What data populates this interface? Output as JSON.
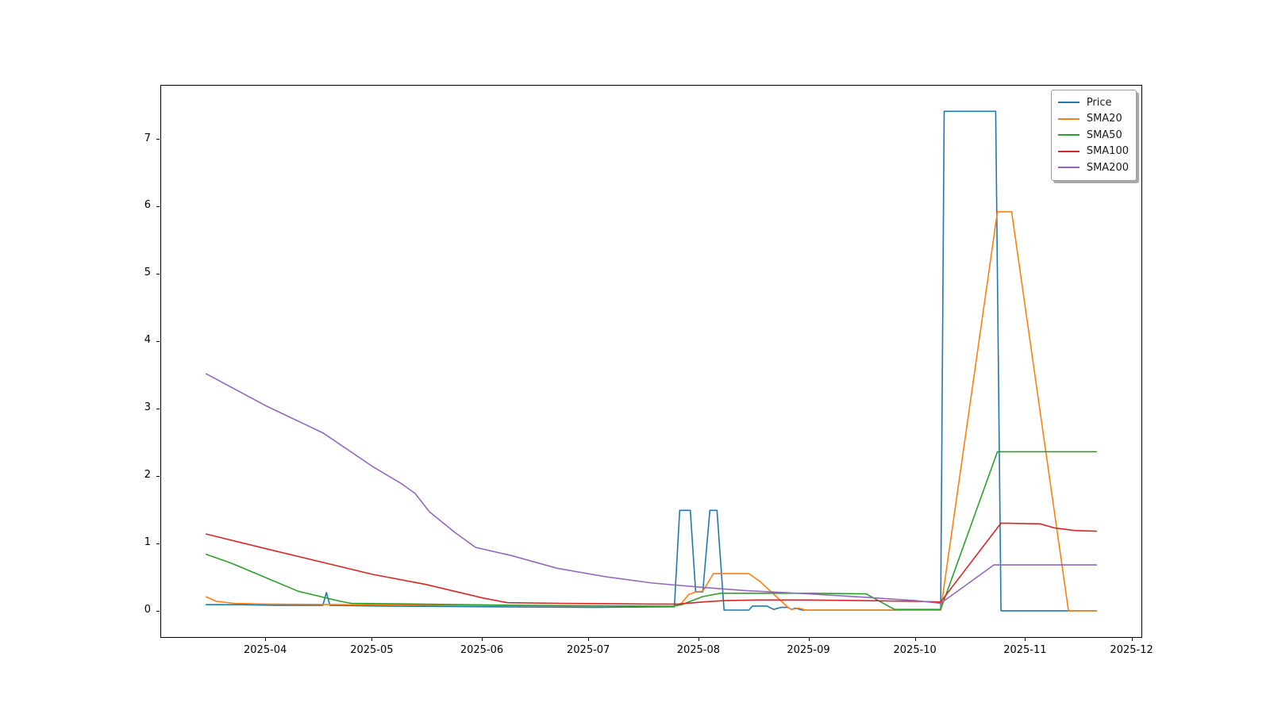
{
  "figure": {
    "background_color": "#ffffff",
    "spine_color": "#000000"
  },
  "chart_data": {
    "type": "line",
    "title": "",
    "xlabel": "",
    "ylabel": "",
    "grid": false,
    "x_unit": "days since first observation (approx 2025-03-15)",
    "x_axis": {
      "range_days": [
        -12.55,
        263.55
      ],
      "ticks": [
        {
          "day": 17,
          "label": "2025-04"
        },
        {
          "day": 47,
          "label": "2025-05"
        },
        {
          "day": 78,
          "label": "2025-06"
        },
        {
          "day": 108,
          "label": "2025-07"
        },
        {
          "day": 139,
          "label": "2025-08"
        },
        {
          "day": 170,
          "label": "2025-09"
        },
        {
          "day": 200,
          "label": "2025-10"
        },
        {
          "day": 231,
          "label": "2025-11"
        },
        {
          "day": 261,
          "label": "2025-12"
        }
      ]
    },
    "y_axis": {
      "range": [
        -0.38,
        7.8
      ],
      "ticks": [
        0,
        1,
        2,
        3,
        4,
        5,
        6,
        7
      ]
    },
    "legend": {
      "position": "upper right",
      "entries": [
        "Price",
        "SMA20",
        "SMA50",
        "SMA100",
        "SMA200"
      ]
    },
    "series": [
      {
        "name": "Price",
        "color": "#1f77b4",
        "points": [
          [
            0,
            0.1
          ],
          [
            10,
            0.1
          ],
          [
            20,
            0.09
          ],
          [
            33,
            0.09
          ],
          [
            34,
            0.28
          ],
          [
            35,
            0.09
          ],
          [
            50,
            0.08
          ],
          [
            80,
            0.07
          ],
          [
            110,
            0.06
          ],
          [
            132,
            0.07
          ],
          [
            133.5,
            1.5
          ],
          [
            136.5,
            1.5
          ],
          [
            138,
            0.29
          ],
          [
            140,
            0.29
          ],
          [
            142,
            1.5
          ],
          [
            144,
            1.5
          ],
          [
            146,
            0.02
          ],
          [
            153,
            0.02
          ],
          [
            154,
            0.08
          ],
          [
            158,
            0.08
          ],
          [
            160,
            0.03
          ],
          [
            162,
            0.06
          ],
          [
            164,
            0.06
          ],
          [
            165,
            0.03
          ],
          [
            166,
            0.05
          ],
          [
            168,
            0.02
          ],
          [
            207,
            0.02
          ],
          [
            208,
            7.42
          ],
          [
            222.5,
            7.42
          ],
          [
            224,
            0.01
          ],
          [
            251,
            0.01
          ]
        ]
      },
      {
        "name": "SMA20",
        "color": "#ff7f0e",
        "points": [
          [
            0,
            0.22
          ],
          [
            3,
            0.15
          ],
          [
            8,
            0.12
          ],
          [
            17,
            0.11
          ],
          [
            40,
            0.1
          ],
          [
            80,
            0.09
          ],
          [
            120,
            0.08
          ],
          [
            132,
            0.08
          ],
          [
            134,
            0.12
          ],
          [
            136,
            0.25
          ],
          [
            138,
            0.29
          ],
          [
            140,
            0.3
          ],
          [
            143,
            0.56
          ],
          [
            153,
            0.56
          ],
          [
            156,
            0.45
          ],
          [
            164,
            0.06
          ],
          [
            165,
            0.03
          ],
          [
            167,
            0.05
          ],
          [
            169,
            0.02
          ],
          [
            207,
            0.02
          ],
          [
            223,
            5.93
          ],
          [
            227,
            5.93
          ],
          [
            243,
            0.01
          ],
          [
            251,
            0.01
          ]
        ]
      },
      {
        "name": "SMA50",
        "color": "#2ca02c",
        "points": [
          [
            0,
            0.85
          ],
          [
            7,
            0.72
          ],
          [
            17,
            0.5
          ],
          [
            26,
            0.3
          ],
          [
            38,
            0.15
          ],
          [
            41,
            0.12
          ],
          [
            60,
            0.11
          ],
          [
            90,
            0.09
          ],
          [
            120,
            0.08
          ],
          [
            131,
            0.07
          ],
          [
            134,
            0.1
          ],
          [
            140,
            0.22
          ],
          [
            145,
            0.27
          ],
          [
            170,
            0.27
          ],
          [
            186,
            0.26
          ],
          [
            194,
            0.03
          ],
          [
            207,
            0.03
          ],
          [
            223,
            2.37
          ],
          [
            251,
            2.37
          ]
        ]
      },
      {
        "name": "SMA100",
        "color": "#d62728",
        "points": [
          [
            0,
            1.15
          ],
          [
            17,
            0.93
          ],
          [
            47,
            0.55
          ],
          [
            62,
            0.4
          ],
          [
            78,
            0.2
          ],
          [
            85,
            0.13
          ],
          [
            100,
            0.12
          ],
          [
            125,
            0.11
          ],
          [
            133,
            0.11
          ],
          [
            140,
            0.14
          ],
          [
            146,
            0.16
          ],
          [
            155,
            0.17
          ],
          [
            170,
            0.17
          ],
          [
            185,
            0.16
          ],
          [
            200,
            0.15
          ],
          [
            207,
            0.14
          ],
          [
            224,
            1.31
          ],
          [
            235,
            1.3
          ],
          [
            239,
            1.24
          ],
          [
            245,
            1.2
          ],
          [
            251,
            1.19
          ]
        ]
      },
      {
        "name": "SMA200",
        "color": "#9467bd",
        "points": [
          [
            0,
            3.53
          ],
          [
            17,
            3.05
          ],
          [
            33,
            2.65
          ],
          [
            47,
            2.15
          ],
          [
            55,
            1.9
          ],
          [
            59,
            1.75
          ],
          [
            63,
            1.48
          ],
          [
            70,
            1.18
          ],
          [
            76,
            0.95
          ],
          [
            86,
            0.83
          ],
          [
            99,
            0.64
          ],
          [
            112,
            0.52
          ],
          [
            126,
            0.42
          ],
          [
            139,
            0.36
          ],
          [
            152,
            0.31
          ],
          [
            170,
            0.26
          ],
          [
            186,
            0.21
          ],
          [
            200,
            0.16
          ],
          [
            207,
            0.12
          ],
          [
            222,
            0.69
          ],
          [
            251,
            0.69
          ]
        ]
      }
    ]
  }
}
